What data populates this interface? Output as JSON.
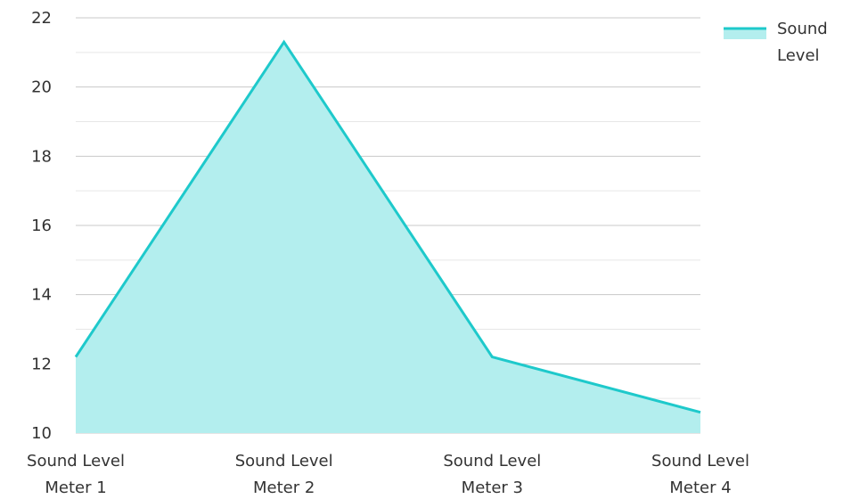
{
  "chart_data": {
    "type": "area",
    "title": "",
    "xlabel": "",
    "ylabel": "",
    "categories": [
      [
        "Sound Level",
        "Meter 1"
      ],
      [
        "Sound Level",
        "Meter 2"
      ],
      [
        "Sound Level",
        "Meter 3"
      ],
      [
        "Sound Level",
        "Meter 4"
      ]
    ],
    "series": [
      {
        "name": "Sound Level",
        "values": [
          12.2,
          21.3,
          12.2,
          10.6
        ]
      }
    ],
    "ylim": [
      10,
      22
    ],
    "yticks": [
      10,
      12,
      14,
      16,
      18,
      20,
      22
    ],
    "minor_grid": true,
    "grid": true,
    "legend": {
      "placement": "top-right",
      "label_lines": [
        "Sound",
        "Level"
      ]
    },
    "colors": {
      "line": "#1ec9cb",
      "fill": "#b3eeee",
      "grid_major": "#c8c8c8",
      "grid_minor": "#e6e6e6",
      "text": "#333333"
    }
  }
}
